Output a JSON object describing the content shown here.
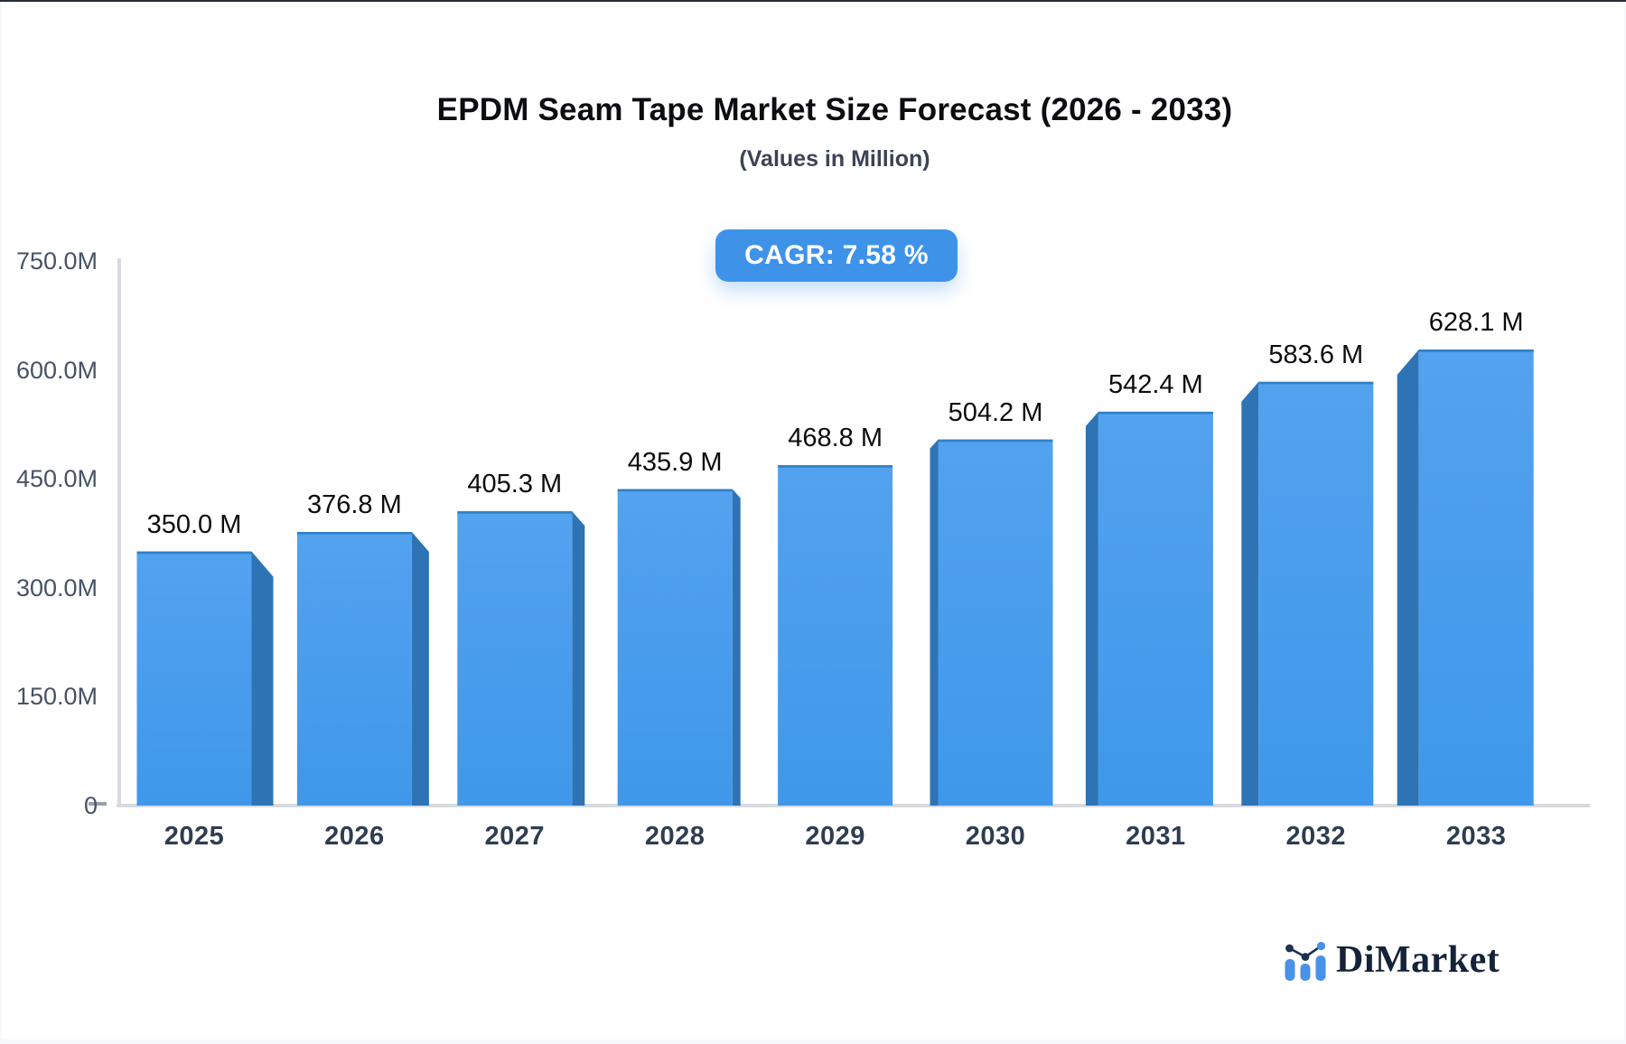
{
  "header": {
    "title": "EPDM Seam Tape Market Size Forecast (2026 - 2033)",
    "subtitle": "(Values in Million)",
    "badge": {
      "label": "CAGR: 7.58 %",
      "bg": "#3E93E9",
      "text_color": "#FFFFFF"
    }
  },
  "brand": {
    "name": "DiMarket",
    "icon": "mini-bar-chart-trend-icon",
    "icon_bar_color": "#4A91E9",
    "icon_dot_color": "#1E3050",
    "text_color": "#15223A"
  },
  "chart_data": {
    "type": "bar",
    "title": "EPDM Seam Tape Market Size Forecast (2026 - 2033)",
    "subtitle": "(Values in Million)",
    "unit": "Million",
    "cagr": "7.58 %",
    "categories": [
      "2025",
      "2026",
      "2027",
      "2028",
      "2029",
      "2030",
      "2031",
      "2032",
      "2033"
    ],
    "values": [
      350.0,
      376.8,
      405.3,
      435.9,
      468.8,
      504.2,
      542.4,
      583.6,
      628.1
    ],
    "bar_labels": [
      "350.0 M",
      "376.8 M",
      "405.3 M",
      "435.9 M",
      "468.8 M",
      "504.2 M",
      "542.4 M",
      "583.6 M",
      "628.1 M"
    ],
    "y_ticks": [
      {
        "label": "750.0M",
        "value": 750
      },
      {
        "label": "600.0M",
        "value": 600
      },
      {
        "label": "450.0M",
        "value": 450
      },
      {
        "label": "300.0M",
        "value": 300
      },
      {
        "label": "150.0M",
        "value": 150
      },
      {
        "label": "0",
        "value": 0
      }
    ],
    "ylim": [
      0,
      750
    ],
    "grid": false,
    "legend": null,
    "style": {
      "bar_face_top": "#52A2EF",
      "bar_face_bottom": "#3F98EA",
      "bar_top_edge": "#2F80C3",
      "bar_side": "#2E74B5",
      "axis_line": "#D7DADF",
      "zero_tick": "#99A1AC",
      "effect": "pseudo-3d side extrusion facing away from center"
    }
  }
}
